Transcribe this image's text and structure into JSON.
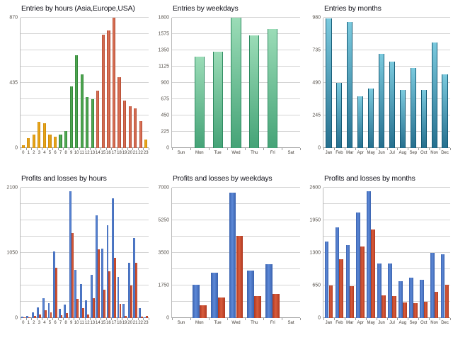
{
  "page": {
    "background": "#ffffff"
  },
  "palette": {
    "gold": {
      "edge": "#c8860a",
      "mid": "#eeac1e"
    },
    "green": {
      "edge": "#2f7d33",
      "mid": "#56b35a"
    },
    "rust": {
      "edge": "#b0452c",
      "mid": "#e07a5f"
    },
    "week_green": {
      "top": "#9bdcb7",
      "bottom": "#45a377",
      "edge": "#2e8a60"
    },
    "teal": {
      "top": "#7bcade",
      "bottom": "#256f8e",
      "edge": "#155a75"
    },
    "blue": {
      "edge": "#3a62ae",
      "mid": "#5d89d8"
    },
    "red": {
      "edge": "#b03920",
      "mid": "#d85c3c"
    }
  },
  "chart_data": [
    {
      "id": "entries-by-hours",
      "type": "bar",
      "title": "Entries by hours (Asia,Europe,USA)",
      "categories": [
        "0",
        "1",
        "2",
        "3",
        "4",
        "5",
        "6",
        "7",
        "8",
        "9",
        "10",
        "11",
        "12",
        "13",
        "14",
        "15",
        "16",
        "17",
        "18",
        "19",
        "20",
        "21",
        "22",
        "23"
      ],
      "values": [
        20,
        65,
        90,
        175,
        165,
        90,
        75,
        90,
        115,
        410,
        620,
        490,
        340,
        325,
        385,
        755,
        785,
        870,
        475,
        315,
        280,
        265,
        180,
        55
      ],
      "bar_colors": [
        "gold",
        "gold",
        "gold",
        "gold",
        "gold",
        "gold",
        "gold",
        "green",
        "green",
        "green",
        "green",
        "green",
        "green",
        "green",
        "rust",
        "rust",
        "rust",
        "rust",
        "rust",
        "rust",
        "rust",
        "rust",
        "rust",
        "gold"
      ],
      "xlabel": "",
      "ylabel": "",
      "ylim": [
        0,
        870
      ],
      "yticks": [
        0,
        435,
        870
      ],
      "grid_divisions": 8,
      "legend": "none"
    },
    {
      "id": "entries-by-weekdays",
      "type": "bar",
      "title": "Entries by weekdays",
      "categories": [
        "Sun",
        "Mon",
        "Tue",
        "Wed",
        "Thu",
        "Fri",
        "Sat"
      ],
      "values": [
        0,
        1265,
        1335,
        1800,
        1555,
        1640,
        0
      ],
      "color": "week_green",
      "xlabel": "",
      "ylabel": "",
      "ylim": [
        0,
        1800
      ],
      "yticks": [
        0,
        225,
        450,
        675,
        900,
        1125,
        1350,
        1575,
        1800
      ],
      "grid_divisions": 8,
      "legend": "none"
    },
    {
      "id": "entries-by-months",
      "type": "bar",
      "title": "Entries by months",
      "categories": [
        "Jan",
        "Feb",
        "Mar",
        "Apr",
        "May",
        "Jun",
        "Jul",
        "Aug",
        "Sep",
        "Oct",
        "Nov",
        "Dec"
      ],
      "values": [
        975,
        490,
        950,
        390,
        450,
        710,
        650,
        435,
        600,
        435,
        795,
        555
      ],
      "color": "teal",
      "xlabel": "",
      "ylabel": "",
      "ylim": [
        0,
        980
      ],
      "yticks": [
        0,
        245,
        490,
        735,
        980
      ],
      "grid_divisions": 8,
      "legend": "none"
    },
    {
      "id": "profits-losses-by-hours",
      "type": "bar",
      "title": "Profits and losses by hours",
      "categories": [
        "0",
        "1",
        "2",
        "3",
        "4",
        "5",
        "6",
        "7",
        "8",
        "9",
        "10",
        "11",
        "12",
        "13",
        "14",
        "15",
        "16",
        "17",
        "18",
        "19",
        "20",
        "21",
        "22",
        "23"
      ],
      "series": [
        {
          "name": "profits",
          "color": "blue",
          "values": [
            20,
            40,
            95,
            170,
            320,
            235,
            1070,
            150,
            215,
            2040,
            780,
            545,
            290,
            695,
            1660,
            1120,
            1490,
            1930,
            665,
            230,
            890,
            1285,
            160,
            15
          ]
        },
        {
          "name": "losses",
          "color": "red",
          "values": [
            8,
            12,
            30,
            60,
            125,
            95,
            805,
            50,
            85,
            1365,
            310,
            155,
            60,
            320,
            1110,
            460,
            750,
            965,
            230,
            30,
            525,
            890,
            20,
            40
          ]
        }
      ],
      "xlabel": "",
      "ylabel": "",
      "ylim": [
        0,
        2100
      ],
      "yticks": [
        0,
        1050,
        2100
      ],
      "grid_divisions": 8,
      "legend": "none"
    },
    {
      "id": "profits-losses-by-weekdays",
      "type": "bar",
      "title": "Profits and losses by weekdays",
      "categories": [
        "Sun",
        "Mon",
        "Tue",
        "Wed",
        "Thu",
        "Fri",
        "Sat"
      ],
      "series": [
        {
          "name": "profits",
          "color": "blue",
          "values": [
            0,
            1800,
            2450,
            6750,
            2550,
            2900,
            0
          ]
        },
        {
          "name": "losses",
          "color": "red",
          "values": [
            0,
            670,
            1100,
            4430,
            1170,
            1290,
            0
          ]
        }
      ],
      "xlabel": "",
      "ylabel": "",
      "ylim": [
        0,
        7000
      ],
      "yticks": [
        0,
        1750,
        3500,
        5250,
        7000
      ],
      "grid_divisions": 8,
      "legend": "none"
    },
    {
      "id": "profits-losses-by-months",
      "type": "bar",
      "title": "Profits and losses by months",
      "categories": [
        "Jan",
        "Feb",
        "Mar",
        "Apr",
        "May",
        "Jun",
        "Jul",
        "Aug",
        "Sep",
        "Oct",
        "Nov",
        "Dec"
      ],
      "series": [
        {
          "name": "profits",
          "color": "blue",
          "values": [
            1520,
            1810,
            1460,
            2100,
            2530,
            1095,
            1095,
            730,
            810,
            765,
            1300,
            1265
          ]
        },
        {
          "name": "losses",
          "color": "red",
          "values": [
            655,
            1180,
            630,
            1430,
            1765,
            455,
            445,
            315,
            290,
            325,
            525,
            670
          ]
        }
      ],
      "xlabel": "",
      "ylabel": "",
      "ylim": [
        0,
        2600
      ],
      "yticks": [
        0,
        650,
        1300,
        1950,
        2600
      ],
      "grid_divisions": 8,
      "legend": "none"
    }
  ]
}
